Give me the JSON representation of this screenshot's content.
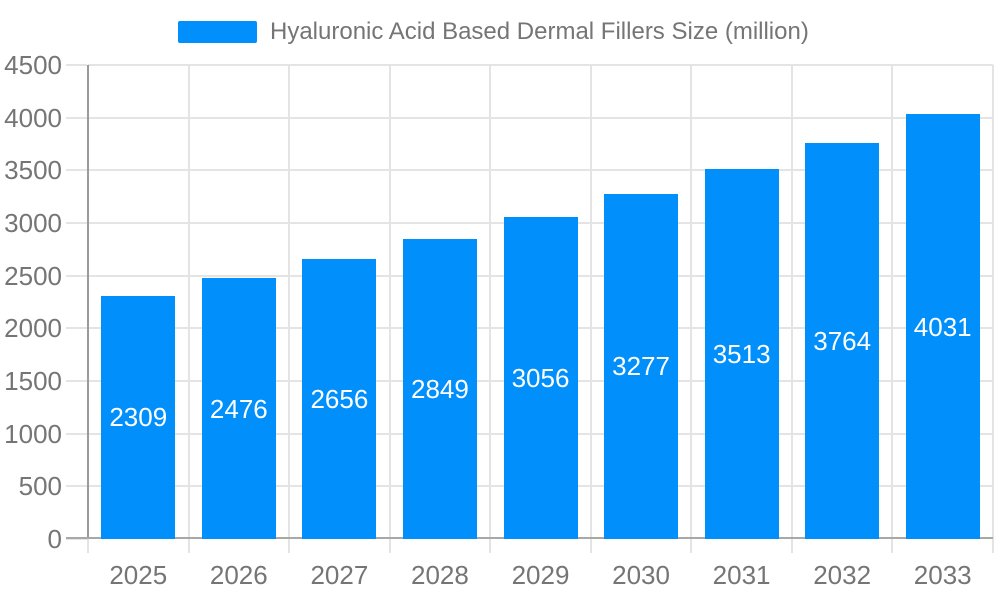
{
  "legend": {
    "label": "Hyaluronic Acid Based Dermal Fillers Size (million)"
  },
  "chart_data": {
    "type": "bar",
    "title": "Hyaluronic Acid Based Dermal Fillers Size (million)",
    "series_name": "Hyaluronic Acid Based Dermal Fillers Size (million)",
    "categories": [
      "2025",
      "2026",
      "2027",
      "2028",
      "2029",
      "2030",
      "2031",
      "2032",
      "2033"
    ],
    "values": [
      2309,
      2476,
      2656,
      2849,
      3056,
      3277,
      3513,
      3764,
      4031
    ],
    "data_labels": [
      "2309",
      "2476",
      "2656",
      "2849",
      "3056",
      "3277",
      "3513",
      "3764",
      "4031"
    ],
    "xlabel": "",
    "ylabel": "",
    "ylim": [
      0,
      4500
    ],
    "ytick_step": 500,
    "y_ticks": [
      0,
      500,
      1000,
      1500,
      2000,
      2500,
      3000,
      3500,
      4000,
      4500
    ],
    "y_tick_labels": [
      "0",
      "500",
      "1000",
      "1500",
      "2000",
      "2500",
      "3000",
      "3500",
      "4000",
      "4500"
    ],
    "grid": true,
    "legend_position": "top",
    "data_label_position": "center-of-bar"
  },
  "colors": {
    "bar": "#008FFB",
    "axis_text": "#757575",
    "grid_line": "#e4e4e4",
    "y_axis_line": "#9a9a9a",
    "x_axis_line": "#a8a8a8",
    "bar_label": "#ffffff",
    "background": "#ffffff"
  }
}
